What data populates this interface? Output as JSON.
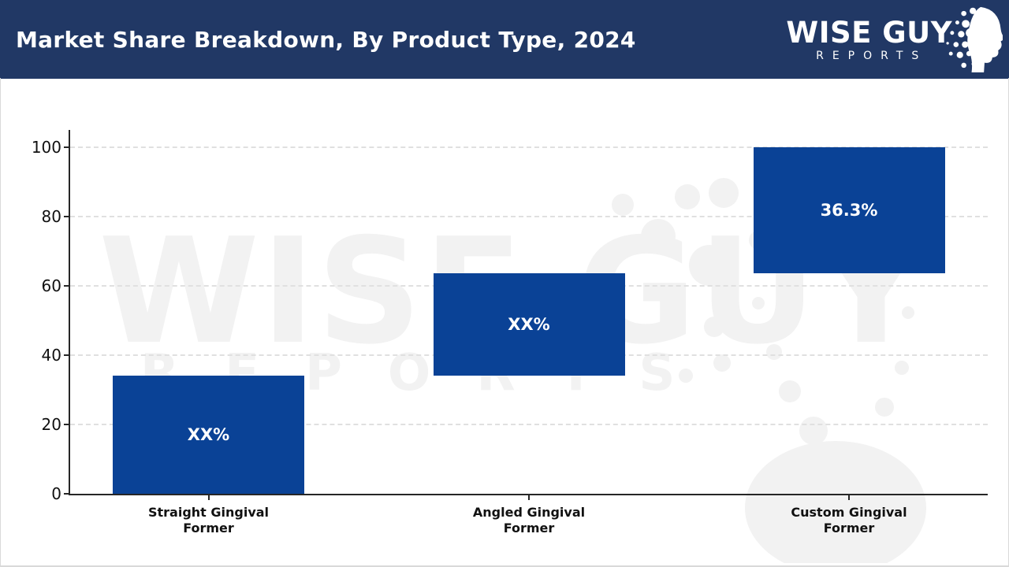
{
  "header": {
    "title": "Market Share Breakdown, By Product Type, 2024",
    "logo": {
      "name_top": "WISE GUY",
      "name_bottom": "REPORTS"
    }
  },
  "watermark": {
    "text_top": "WISE GUY",
    "text_bottom": "REPORTS"
  },
  "chart_data": {
    "type": "bar",
    "variant": "waterfall",
    "title": "Market Share Breakdown, By Product Type, 2024",
    "categories": [
      "Straight Gingival\nFormer",
      "Angled Gingival\nFormer",
      "Custom Gingival\nFormer"
    ],
    "segments": [
      {
        "category": "Straight Gingival Former",
        "start": 0,
        "end": 34,
        "label": "XX%"
      },
      {
        "category": "Angled Gingival Former",
        "start": 34,
        "end": 63.7,
        "label": "XX%"
      },
      {
        "category": "Custom Gingival Former",
        "start": 63.7,
        "end": 100,
        "label": "36.3%"
      }
    ],
    "xlabel": "",
    "ylabel": "",
    "yticks": [
      0,
      20,
      40,
      60,
      80,
      100
    ],
    "ylim": [
      0,
      105
    ],
    "grid": "horizontal-dashed",
    "legend": "none",
    "colors": {
      "bar": "#0a4296",
      "header_bg": "#213865",
      "grid": "#e0e0e0",
      "axis": "#262626",
      "bar_label_text": "#ffffff",
      "watermark": "#f2f2f2"
    }
  }
}
